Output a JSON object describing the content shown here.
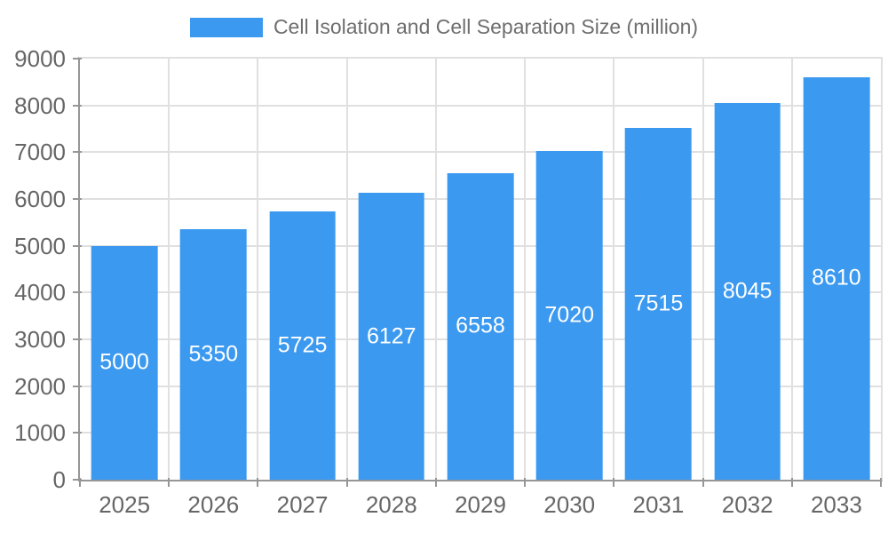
{
  "legend": {
    "label": "Cell Isolation and Cell Separation Size (million)"
  },
  "colors": {
    "bar": "#3B99F0",
    "grid": "#E0E0E0",
    "axis": "#969696",
    "tick_text": "#666666",
    "legend_text": "#6E6E6E",
    "value_label": "#FFFFFF",
    "background": "#FFFFFF"
  },
  "chart_data": {
    "type": "bar",
    "title": "Cell Isolation and Cell Separation Size (million)",
    "categories": [
      "2025",
      "2026",
      "2027",
      "2028",
      "2029",
      "2030",
      "2031",
      "2032",
      "2033"
    ],
    "values": [
      5000,
      5350,
      5725,
      6127,
      6558,
      7020,
      7515,
      8045,
      8610
    ],
    "xlabel": "",
    "ylabel": "",
    "ylim": [
      0,
      9000
    ],
    "yticks": [
      0,
      1000,
      2000,
      3000,
      4000,
      5000,
      6000,
      7000,
      8000,
      9000
    ],
    "grid": true,
    "legend_position": "top-center",
    "value_labels": "inside-center"
  }
}
